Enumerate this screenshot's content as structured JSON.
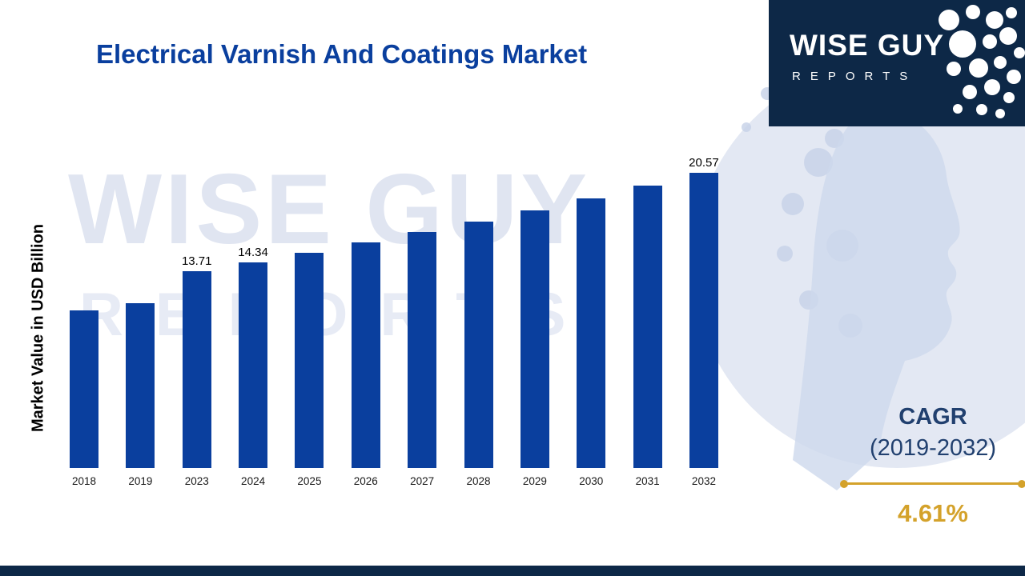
{
  "header": {
    "title": "Electrical Varnish And Coatings Market"
  },
  "logo": {
    "brand": "WISE GUY",
    "sub": "REPORTS"
  },
  "watermark": {
    "line1": "WISE GUY",
    "line2": "REPORTS"
  },
  "cagr": {
    "label": "CAGR",
    "range": "(2019-2032)",
    "value": "4.61%"
  },
  "chart_data": {
    "type": "bar",
    "title": "Electrical Varnish And Coatings Market",
    "xlabel": "",
    "ylabel": "Market Value in USD Billion",
    "categories": [
      "2018",
      "2019",
      "2023",
      "2024",
      "2025",
      "2026",
      "2027",
      "2028",
      "2029",
      "2030",
      "2031",
      "2032"
    ],
    "values": [
      10.96,
      11.46,
      13.71,
      14.34,
      15.0,
      15.69,
      16.41,
      17.17,
      17.96,
      18.79,
      19.66,
      20.57
    ],
    "bar_labels": [
      "",
      "",
      "13.71",
      "14.34",
      "",
      "",
      "",
      "",
      "",
      "",
      "",
      "20.57"
    ],
    "ylim": [
      0,
      22
    ],
    "grid": false,
    "legend": false,
    "bar_color": "#0a3f9e"
  },
  "colors": {
    "navy": "#0d2847",
    "bar_blue": "#0a3f9e",
    "title_blue": "#0a3f9e",
    "gold": "#d4a22b",
    "watermark_light": "#e3e8f3"
  }
}
